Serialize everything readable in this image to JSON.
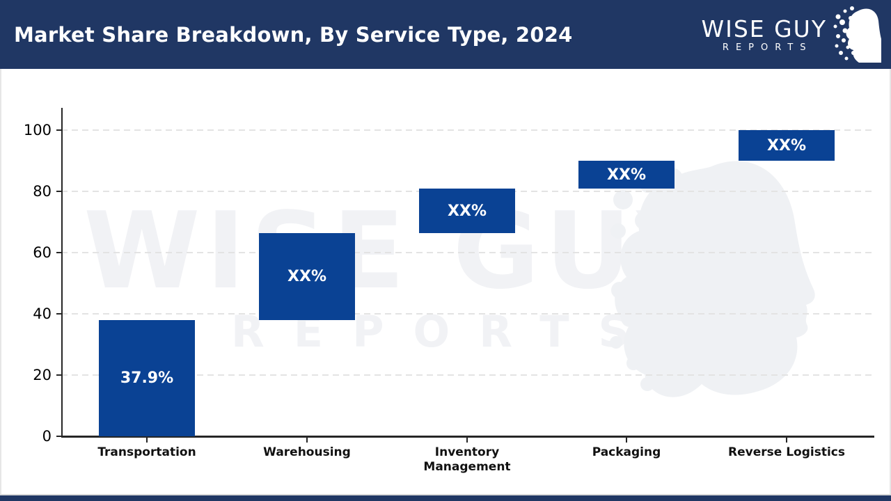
{
  "header": {
    "title": "Market Share Breakdown, By Service Type, 2024",
    "logo": {
      "line1": "WISE GUY",
      "line2": "REPORTS"
    }
  },
  "watermark": {
    "line1": "WISE GUY",
    "line2": "REPORTS"
  },
  "colors": {
    "header_bg": "#203764",
    "footer_bg": "#203764",
    "bar_blue": "#0a4294",
    "bar_label_text": "#ffffff",
    "grid_line": "#e3e3e3",
    "axis": "#262626",
    "watermark": "#f1f2f5"
  },
  "chart_data": {
    "type": "bar",
    "subtype": "waterfall",
    "title": "Market Share Breakdown, By Service Type, 2024",
    "xlabel": "",
    "ylabel": "",
    "ylim": [
      0,
      107
    ],
    "yticks": [
      0,
      20,
      40,
      60,
      80,
      100
    ],
    "grid": "horizontal dashed",
    "legend": "none",
    "series": [
      {
        "category": "Transportation",
        "start": 0,
        "end": 37.9,
        "label": "37.9%"
      },
      {
        "category": "Warehousing",
        "start": 37.9,
        "end": 66.4,
        "label": "XX%"
      },
      {
        "category": "Inventory\nManagement",
        "start": 66.4,
        "end": 80.8,
        "label": "XX%"
      },
      {
        "category": "Packaging",
        "start": 80.8,
        "end": 90.0,
        "label": "XX%"
      },
      {
        "category": "Reverse Logistics",
        "start": 90.0,
        "end": 100.0,
        "label": "XX%"
      }
    ]
  }
}
